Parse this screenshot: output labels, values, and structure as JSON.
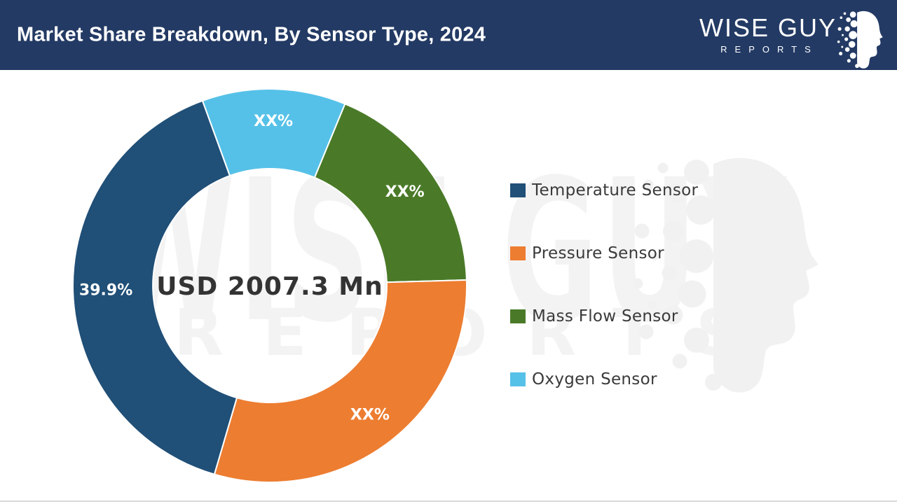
{
  "header": {
    "title": "Market Share Breakdown, By Sensor Type, 2024",
    "bg_color": "#233A64",
    "logo": {
      "name": "WISE GUY",
      "sub": "REPORTS"
    }
  },
  "watermark": {
    "line1": "WISE GUY",
    "line2": "REPORTS"
  },
  "chart_data": {
    "type": "pie",
    "subtype": "donut",
    "title": "Market Share Breakdown, By Sensor Type, 2024",
    "center_label": "USD 2007.3 Mn",
    "start_angle_deg": -20,
    "direction": "clockwise",
    "legend_position": "right",
    "segments": [
      {
        "label": "Oxygen Sensor",
        "display_value": "XX%",
        "drawn_pct": 11.8,
        "color": "#56C1E8"
      },
      {
        "label": "Mass Flow Sensor",
        "display_value": "XX%",
        "drawn_pct": 18.3,
        "color": "#4A7A28"
      },
      {
        "label": "Pressure Sensor",
        "display_value": "XX%",
        "drawn_pct": 30.0,
        "color": "#ED7D31"
      },
      {
        "label": "Temperature Sensor",
        "display_value": "39.9%",
        "drawn_pct": 39.9,
        "color": "#204F77"
      }
    ]
  },
  "legend": {
    "items": [
      {
        "label": "Temperature Sensor",
        "color": "#204F77"
      },
      {
        "label": "Pressure Sensor",
        "color": "#ED7D31"
      },
      {
        "label": "Mass Flow Sensor",
        "color": "#4A7A28"
      },
      {
        "label": "Oxygen Sensor",
        "color": "#56C1E8"
      }
    ]
  }
}
